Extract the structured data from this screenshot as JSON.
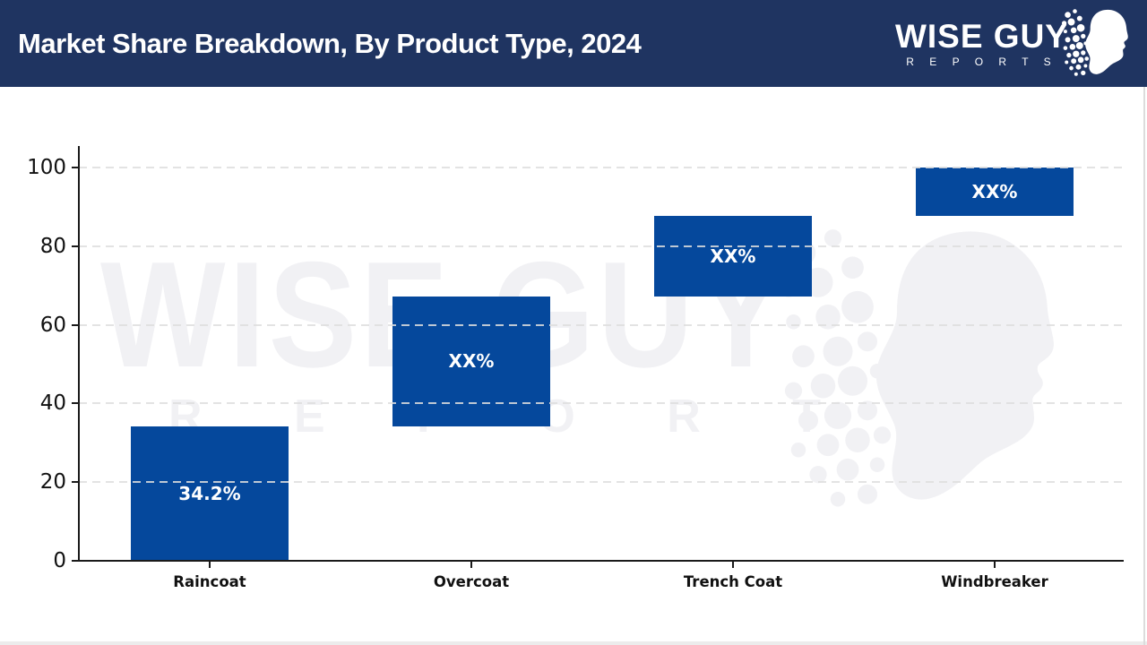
{
  "header": {
    "title": "Market Share Breakdown, By Product Type, 2024",
    "logo_line1": "WISE GUY",
    "logo_line2": "R E P O R T S"
  },
  "watermark": {
    "line1": "WISE GUY",
    "line2": "R E P O R T S"
  },
  "colors": {
    "header_bg": "#1f3461",
    "bar_blue": "#05489c",
    "gridline": "#dedede",
    "axis": "#1a1a1a",
    "watermark_gray": "#f1f1f4"
  },
  "chart_data": {
    "type": "bar",
    "subtype": "floating-waterfall",
    "title": "Market Share Breakdown, By Product Type, 2024",
    "categories": [
      "Raincoat",
      "Overcoat",
      "Trench Coat",
      "Windbreaker"
    ],
    "series": [
      {
        "name": "Market share segment",
        "ranges": [
          [
            0,
            34.2
          ],
          [
            34.2,
            67.3
          ],
          [
            67.3,
            87.6
          ],
          [
            87.6,
            100
          ]
        ]
      }
    ],
    "bar_labels": [
      "34.2%",
      "XX%",
      "XX%",
      "XX%"
    ],
    "xlabel": "",
    "ylabel": "",
    "ylim": [
      0,
      100
    ],
    "yticks": [
      0,
      20,
      40,
      60,
      80,
      100
    ],
    "grid": "horizontal-dashed",
    "legend": "none"
  }
}
